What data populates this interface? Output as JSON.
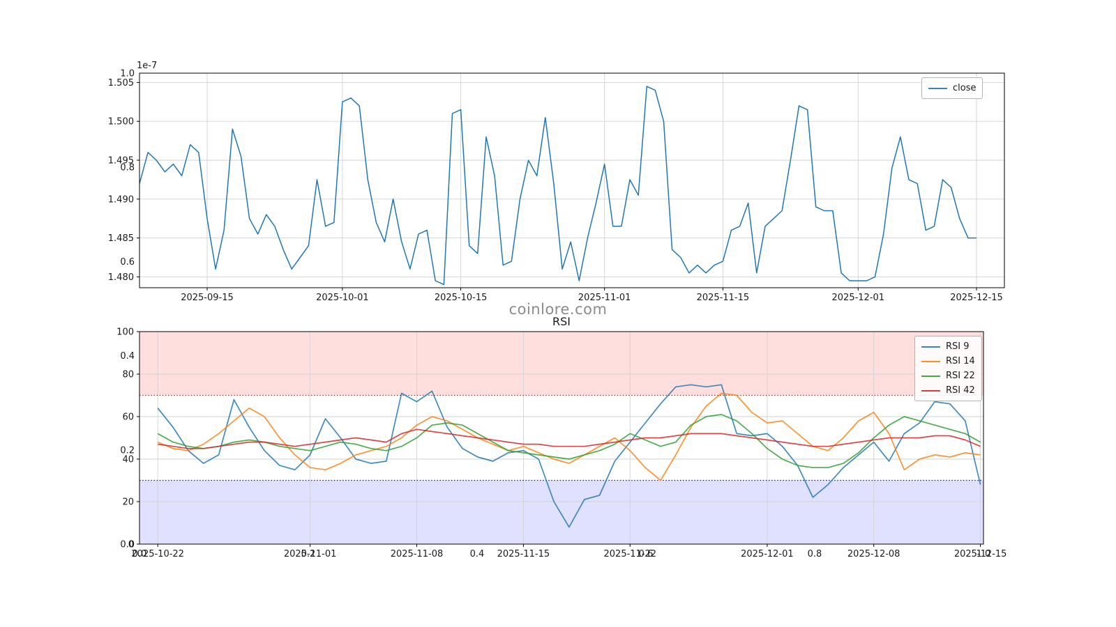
{
  "watermark": "coinlore.com",
  "chart_data": [
    {
      "name": "price-chart",
      "type": "line",
      "title": "",
      "xlabel": "",
      "ylabel": "",
      "y_offset_text": "1e-7",
      "y_unit": "1e-7",
      "x_start_date": "2025-09-07",
      "x_end_date": "2025-12-15",
      "xlim": [
        0,
        102.3
      ],
      "ylim": [
        1.4786,
        1.5062
      ],
      "grid": true,
      "legend_position": "upper right",
      "x_ticks": [
        {
          "label": "2025-09-15",
          "i": 8
        },
        {
          "label": "2025-10-01",
          "i": 24
        },
        {
          "label": "2025-10-15",
          "i": 38
        },
        {
          "label": "2025-11-01",
          "i": 55
        },
        {
          "label": "2025-11-15",
          "i": 69
        },
        {
          "label": "2025-12-01",
          "i": 85
        },
        {
          "label": "2025-12-15",
          "i": 99
        }
      ],
      "y_ticks": [
        {
          "label": "1.480",
          "v": 1.48
        },
        {
          "label": "1.485",
          "v": 1.485
        },
        {
          "label": "1.490",
          "v": 1.49
        },
        {
          "label": "1.495",
          "v": 1.495
        },
        {
          "label": "1.500",
          "v": 1.5
        },
        {
          "label": "1.505",
          "v": 1.505
        }
      ],
      "series": [
        {
          "name": "close",
          "color": "#1f77b4",
          "values": [
            1.492,
            1.496,
            1.495,
            1.4935,
            1.4945,
            1.493,
            1.497,
            1.496,
            1.4875,
            1.481,
            1.486,
            1.499,
            1.4955,
            1.4875,
            1.4855,
            1.488,
            1.4865,
            1.4835,
            1.481,
            1.4825,
            1.484,
            1.4925,
            1.4865,
            1.487,
            1.5025,
            1.503,
            1.502,
            1.4925,
            1.487,
            1.4845,
            1.49,
            1.4845,
            1.481,
            1.4855,
            1.486,
            1.4795,
            1.479,
            1.501,
            1.5015,
            1.484,
            1.483,
            1.498,
            1.493,
            1.4815,
            1.482,
            1.49,
            1.495,
            1.493,
            1.5005,
            1.492,
            1.481,
            1.4845,
            1.4795,
            1.485,
            1.4895,
            1.4945,
            1.4865,
            1.4865,
            1.4925,
            1.4905,
            1.5045,
            1.504,
            1.5,
            1.4835,
            1.4825,
            1.4805,
            1.4815,
            1.4805,
            1.4815,
            1.482,
            1.486,
            1.4865,
            1.4895,
            1.4805,
            1.4865,
            1.4875,
            1.4885,
            1.495,
            1.502,
            1.5015,
            1.489,
            1.4885,
            1.4885,
            1.4805,
            1.4795,
            1.4795,
            1.4795,
            1.48,
            1.4855,
            1.494,
            1.498,
            1.4925,
            1.492,
            1.486,
            1.4865,
            1.4925,
            1.4915,
            1.4875,
            1.485,
            1.485
          ]
        }
      ]
    },
    {
      "name": "rsi-chart",
      "type": "line",
      "title": "RSI",
      "xlabel": "",
      "ylabel": "",
      "x_start_date": "2025-10-22",
      "x_end_date": "2025-12-15",
      "xlim": [
        -1.2,
        54.2
      ],
      "ylim": [
        0,
        100
      ],
      "grid": true,
      "legend_position": "upper right",
      "x_ticks": [
        {
          "label": "2025-10-22",
          "i": 0
        },
        {
          "label": "2025-11-01",
          "i": 10
        },
        {
          "label": "2025-11-08",
          "i": 17
        },
        {
          "label": "2025-11-15",
          "i": 24
        },
        {
          "label": "2025-11-22",
          "i": 31
        },
        {
          "label": "2025-12-01",
          "i": 40
        },
        {
          "label": "2025-12-08",
          "i": 47
        },
        {
          "label": "2025-12-15",
          "i": 54
        }
      ],
      "y_ticks": [
        {
          "label": "0",
          "v": 0
        },
        {
          "label": "20",
          "v": 20
        },
        {
          "label": "40",
          "v": 40
        },
        {
          "label": "60",
          "v": 60
        },
        {
          "label": "80",
          "v": 80
        },
        {
          "label": "100",
          "v": 100
        }
      ],
      "bands": [
        {
          "name": "overbought-band",
          "from": 70,
          "to": 100,
          "color": "rgba(255,0,0,0.13)"
        },
        {
          "name": "oversold-band",
          "from": 0,
          "to": 30,
          "color": "rgba(0,0,255,0.12)"
        }
      ],
      "threshold_lines": [
        {
          "name": "overbought-threshold-line",
          "y": 70,
          "color": "#ff0000"
        },
        {
          "name": "oversold-threshold-line",
          "y": 30,
          "color": "#0000ff"
        }
      ],
      "series": [
        {
          "name": "RSI 9",
          "color": "#1f77b4",
          "values": [
            64,
            55,
            44,
            38,
            42,
            68,
            55,
            44,
            37,
            35,
            42,
            59,
            50,
            40,
            38,
            39,
            71,
            67,
            72,
            55,
            45,
            41,
            39,
            43,
            44,
            40,
            20,
            8,
            21,
            23,
            39,
            48,
            57,
            66,
            74,
            75,
            74,
            75,
            52,
            51,
            52,
            46,
            37,
            22,
            28,
            36,
            42,
            48,
            39,
            52,
            57,
            67,
            66,
            58,
            28
          ]
        },
        {
          "name": "RSI 14",
          "color": "#ff7f0e",
          "values": [
            48,
            45,
            44,
            47,
            52,
            58,
            64,
            60,
            50,
            42,
            36,
            35,
            38,
            42,
            44,
            46,
            50,
            56,
            60,
            58,
            54,
            50,
            47,
            44,
            46,
            43,
            40,
            38,
            42,
            46,
            50,
            44,
            36,
            30,
            42,
            55,
            65,
            71,
            70,
            62,
            57,
            58,
            52,
            46,
            44,
            50,
            58,
            62,
            52,
            35,
            40,
            42,
            41,
            43,
            42
          ]
        },
        {
          "name": "RSI 22",
          "color": "#2ca02c",
          "values": [
            52,
            48,
            46,
            45,
            46,
            48,
            49,
            48,
            46,
            45,
            44,
            46,
            48,
            47,
            45,
            44,
            46,
            50,
            56,
            57,
            56,
            52,
            48,
            44,
            43,
            42,
            41,
            40,
            42,
            44,
            47,
            52,
            49,
            46,
            48,
            56,
            60,
            61,
            58,
            52,
            45,
            40,
            37,
            36,
            36,
            38,
            43,
            50,
            56,
            60,
            58,
            56,
            54,
            52,
            48
          ]
        },
        {
          "name": "RSI 42",
          "color": "#d62728",
          "values": [
            47,
            46,
            45,
            45,
            46,
            47,
            48,
            48,
            47,
            46,
            47,
            48,
            49,
            50,
            49,
            48,
            52,
            54,
            53,
            52,
            51,
            50,
            49,
            48,
            47,
            47,
            46,
            46,
            46,
            47,
            48,
            49,
            50,
            50,
            51,
            52,
            52,
            52,
            51,
            50,
            49,
            48,
            47,
            46,
            46,
            47,
            48,
            49,
            50,
            50,
            50,
            51,
            51,
            49,
            46
          ]
        }
      ]
    }
  ],
  "overlay_axis": {
    "left_ticks": [
      {
        "label": "1.0",
        "v": 1.0
      },
      {
        "label": "0.8",
        "v": 0.8
      },
      {
        "label": "0.6",
        "v": 0.6
      },
      {
        "label": "0.4",
        "v": 0.4
      },
      {
        "label": "0.2",
        "v": 0.2
      },
      {
        "label": "0.0",
        "v": 0.0
      }
    ],
    "bottom_ticks": [
      {
        "label": "0.0",
        "v": 0.0
      },
      {
        "label": "0.2",
        "v": 0.2
      },
      {
        "label": "0.4",
        "v": 0.4
      },
      {
        "label": "0.6",
        "v": 0.6
      },
      {
        "label": "0.8",
        "v": 0.8
      },
      {
        "label": "1.0",
        "v": 1.0
      }
    ]
  }
}
